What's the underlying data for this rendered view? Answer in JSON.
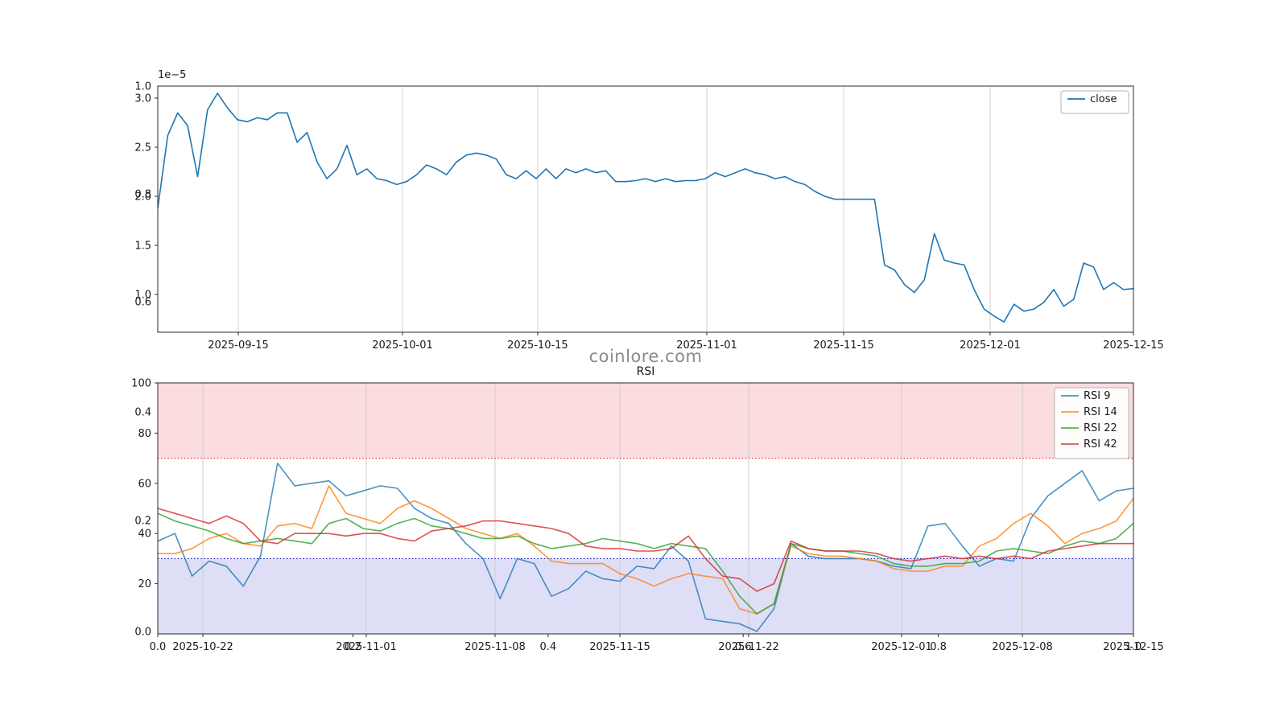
{
  "watermark": {
    "text": "coinlore.com",
    "color": "#8a8a8a"
  },
  "chart_data": [
    {
      "type": "line",
      "name": "price",
      "title": "",
      "offset_text": "1e−5",
      "value_scale": "1e-5",
      "ylim": [
        0.615,
        3.123
      ],
      "grid": "vertical",
      "yticks": [
        {
          "label": "3.0",
          "v": 3.0
        },
        {
          "label": "2.5",
          "v": 2.5
        },
        {
          "label": "2.0",
          "v": 2.0
        },
        {
          "label": "1.5",
          "v": 1.5
        },
        {
          "label": "1.0",
          "v": 1.0
        }
      ],
      "yticks_secondary": [
        {
          "label": "1.0",
          "f": 0.0
        },
        {
          "label": "0.8",
          "f": 0.438
        },
        {
          "label": "0.6",
          "f": 0.876
        }
      ],
      "xticks": [
        {
          "label": "2025-09-15",
          "f": 0.0825
        },
        {
          "label": "2025-10-01",
          "f": 0.2508
        },
        {
          "label": "2025-10-15",
          "f": 0.3894
        },
        {
          "label": "2025-11-01",
          "f": 0.5627
        },
        {
          "label": "2025-11-15",
          "f": 0.703
        },
        {
          "label": "2025-12-01",
          "f": 0.8531
        },
        {
          "label": "2025-12-15",
          "f": 1.0
        }
      ],
      "legend": [
        "close"
      ],
      "series": [
        {
          "name": "close",
          "color": "#1f77b4",
          "opacity": 1,
          "values": [
            1.88,
            2.62,
            2.85,
            2.72,
            2.2,
            2.88,
            3.05,
            2.9,
            2.78,
            2.76,
            2.8,
            2.78,
            2.85,
            2.85,
            2.55,
            2.65,
            2.35,
            2.18,
            2.28,
            2.52,
            2.22,
            2.28,
            2.18,
            2.16,
            2.12,
            2.15,
            2.22,
            2.32,
            2.28,
            2.22,
            2.35,
            2.42,
            2.44,
            2.42,
            2.38,
            2.22,
            2.18,
            2.26,
            2.18,
            2.28,
            2.18,
            2.28,
            2.24,
            2.28,
            2.24,
            2.26,
            2.15,
            2.15,
            2.16,
            2.18,
            2.15,
            2.18,
            2.15,
            2.16,
            2.16,
            2.18,
            2.24,
            2.2,
            2.24,
            2.28,
            2.24,
            2.22,
            2.18,
            2.2,
            2.15,
            2.12,
            2.05,
            2.0,
            1.97,
            1.97,
            1.97,
            1.97,
            1.97,
            1.3,
            1.25,
            1.1,
            1.02,
            1.15,
            1.62,
            1.35,
            1.32,
            1.3,
            1.05,
            0.85,
            0.78,
            0.72,
            0.9,
            0.83,
            0.85,
            0.92,
            1.05,
            0.88,
            0.95,
            1.32,
            1.28,
            1.05,
            1.12,
            1.05,
            1.06
          ]
        }
      ]
    },
    {
      "type": "line",
      "name": "rsi",
      "title": "RSI",
      "ylim": [
        0,
        100
      ],
      "grid": "vertical",
      "bands": [
        {
          "lo": 70,
          "hi": 100,
          "color": "#fbdcdf",
          "meaning": "overbought"
        },
        {
          "lo": 0,
          "hi": 30,
          "color": "#dedef7",
          "meaning": "oversold"
        }
      ],
      "hlines": [
        {
          "v": 70,
          "color": "#dd3333",
          "style": "dotted"
        },
        {
          "v": 30,
          "color": "#1515d0",
          "style": "dotted"
        }
      ],
      "yticks": [
        {
          "label": "100",
          "v": 100
        },
        {
          "label": "80",
          "v": 80
        },
        {
          "label": "60",
          "v": 60
        },
        {
          "label": "40",
          "v": 40
        },
        {
          "label": "20",
          "v": 20
        }
      ],
      "yticks_secondary": [
        {
          "label": "0.4",
          "f": 0.115
        },
        {
          "label": "0.2",
          "f": 0.548
        },
        {
          "label": "0.0",
          "f": 0.99
        }
      ],
      "xticks": [
        {
          "label": "2025-10-22",
          "f": 0.0462
        },
        {
          "label": "2025-11-01",
          "f": 0.2137
        },
        {
          "label": "2025-11-08",
          "f": 0.3457
        },
        {
          "label": "2025-11-15",
          "f": 0.4736
        },
        {
          "label": "2025-11-22",
          "f": 0.6056
        },
        {
          "label": "2025-12-01",
          "f": 0.7624
        },
        {
          "label": "2025-12-08",
          "f": 0.8862
        },
        {
          "label": "2025-12-15",
          "f": 1.0
        }
      ],
      "xticks_secondary": [
        {
          "label": "0.0",
          "f": 0.0
        },
        {
          "label": "0.2",
          "f": 0.2
        },
        {
          "label": "0.4",
          "f": 0.4
        },
        {
          "label": "0.6",
          "f": 0.6
        },
        {
          "label": "0.8",
          "f": 0.8
        },
        {
          "label": "1.0",
          "f": 1.0
        }
      ],
      "legend": [
        "RSI 9",
        "RSI 14",
        "RSI 22",
        "RSI 42"
      ],
      "series": [
        {
          "name": "RSI 9",
          "color": "#1f77b4",
          "opacity": 0.8,
          "values": [
            37,
            40,
            23,
            29,
            27,
            19,
            31,
            68,
            59,
            60,
            61,
            55,
            57,
            59,
            58,
            50,
            46,
            44,
            36,
            30,
            14,
            30,
            28,
            15,
            18,
            25,
            22,
            21,
            27,
            26,
            35,
            29,
            6,
            5,
            4,
            1,
            10,
            36,
            31,
            30,
            30,
            30,
            29,
            27,
            26,
            43,
            44,
            35,
            27,
            30,
            29,
            46,
            55,
            60,
            65,
            53,
            57,
            58
          ]
        },
        {
          "name": "RSI 14",
          "color": "#ff7f0e",
          "opacity": 0.8,
          "values": [
            32,
            32,
            34,
            38,
            40,
            36,
            35,
            43,
            44,
            42,
            59,
            48,
            46,
            44,
            50,
            53,
            50,
            46,
            42,
            40,
            38,
            40,
            35,
            29,
            28,
            28,
            28,
            24,
            22,
            19,
            22,
            24,
            23,
            22,
            10,
            8,
            12,
            35,
            32,
            31,
            31,
            30,
            29,
            26,
            25,
            25,
            27,
            27,
            35,
            38,
            44,
            48,
            43,
            36,
            40,
            42,
            45,
            54
          ]
        },
        {
          "name": "RSI 22",
          "color": "#2ca02c",
          "opacity": 0.8,
          "values": [
            48,
            45,
            43,
            41,
            38,
            36,
            37,
            38,
            37,
            36,
            44,
            46,
            42,
            41,
            44,
            46,
            43,
            42,
            40,
            38,
            38,
            39,
            36,
            34,
            35,
            36,
            38,
            37,
            36,
            34,
            36,
            35,
            34,
            25,
            15,
            8,
            12,
            36,
            34,
            33,
            33,
            32,
            31,
            28,
            27,
            27,
            28,
            28,
            29,
            33,
            34,
            33,
            32,
            35,
            37,
            36,
            38,
            44
          ]
        },
        {
          "name": "RSI 42",
          "color": "#d62728",
          "opacity": 0.8,
          "values": [
            50,
            48,
            46,
            44,
            47,
            44,
            37,
            36,
            40,
            40,
            40,
            39,
            40,
            40,
            38,
            37,
            41,
            42,
            43,
            45,
            45,
            44,
            43,
            42,
            40,
            35,
            34,
            34,
            33,
            33,
            34,
            39,
            30,
            23,
            22,
            17,
            20,
            37,
            34,
            33,
            33,
            33,
            32,
            30,
            29,
            30,
            31,
            30,
            31,
            30,
            31,
            30,
            33,
            34,
            35,
            36,
            36,
            36
          ]
        }
      ]
    }
  ]
}
